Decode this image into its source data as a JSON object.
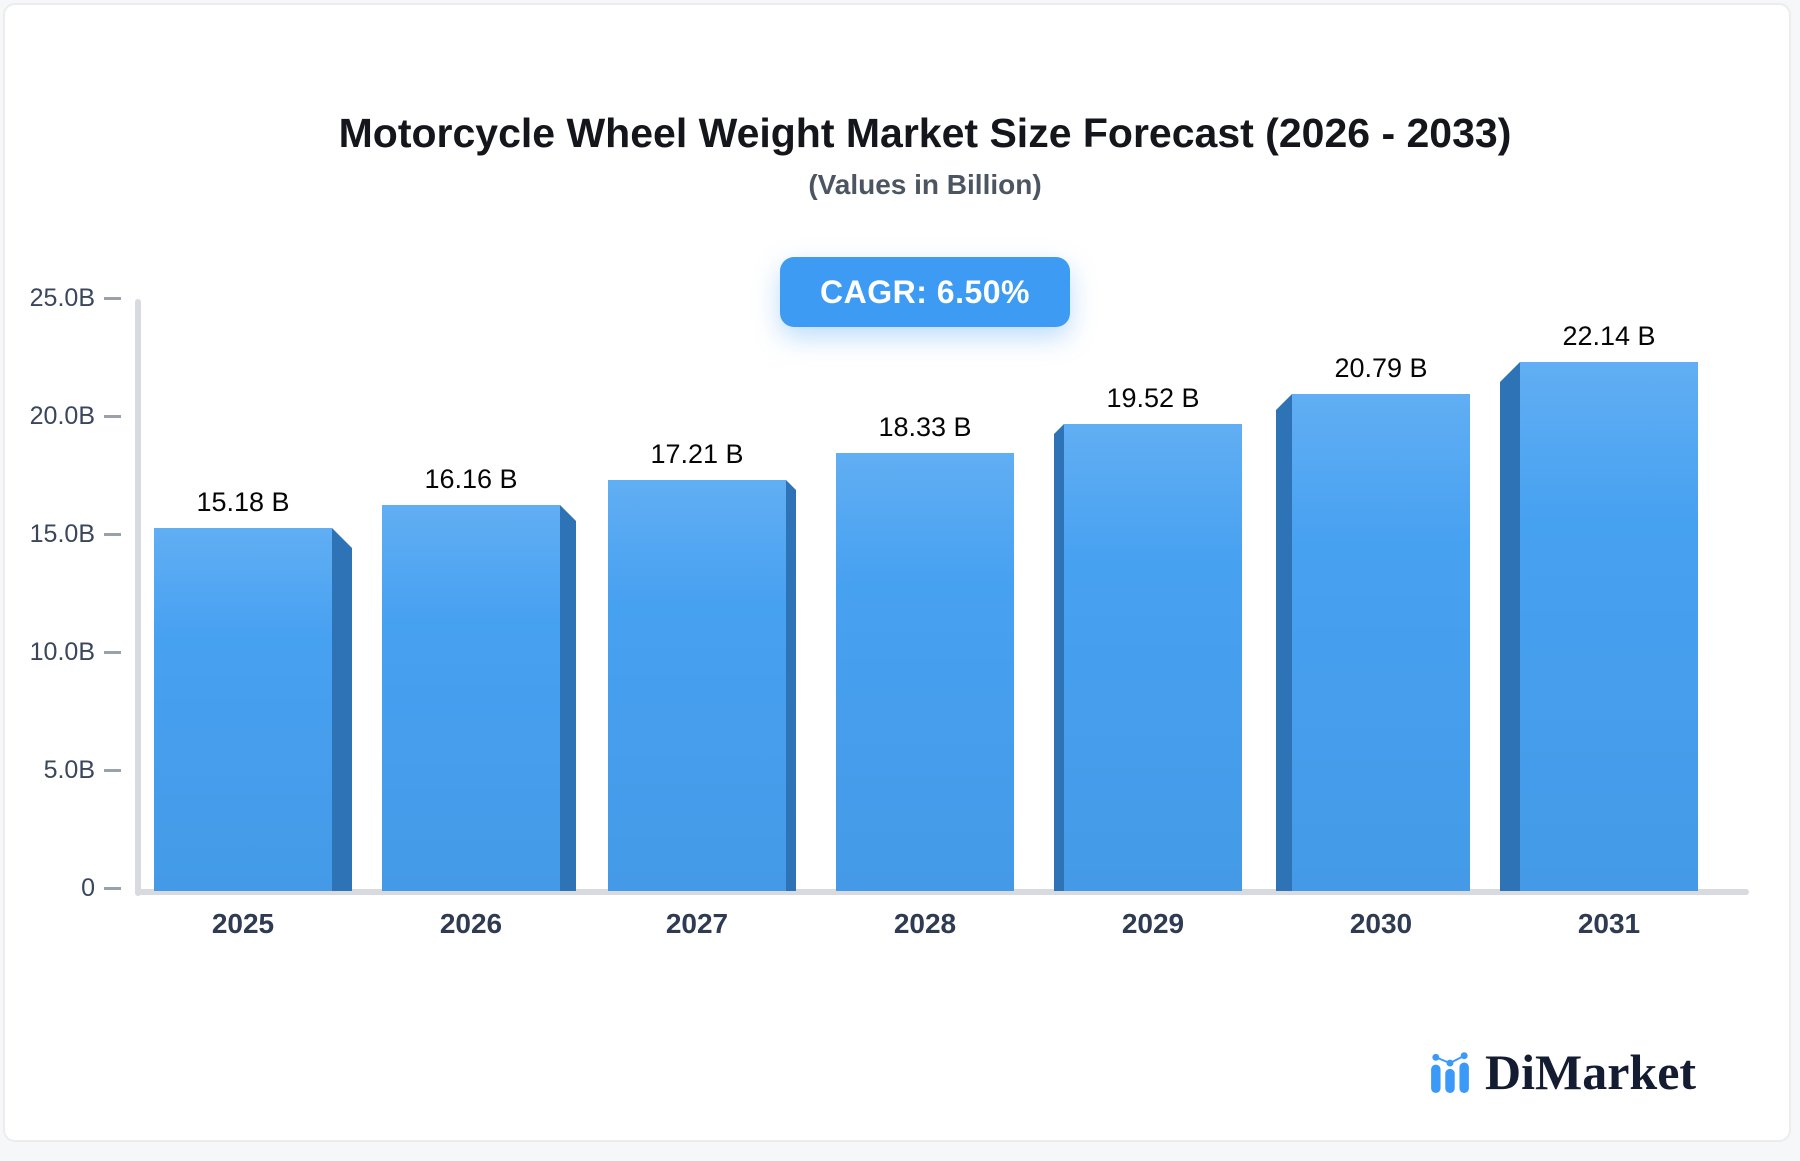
{
  "header": {
    "title": "Motorcycle Wheel Weight Market Size Forecast (2026 - 2033)",
    "subtitle": "(Values in Billion)",
    "cagr_badge": "CAGR: 6.50%"
  },
  "chart_data": {
    "type": "bar",
    "title": "Motorcycle Wheel Weight Market Size Forecast (2026 - 2033)",
    "subtitle": "(Values in Billion)",
    "categories": [
      "2025",
      "2026",
      "2027",
      "2028",
      "2029",
      "2030",
      "2031"
    ],
    "values": [
      15.18,
      16.16,
      17.21,
      18.33,
      19.52,
      20.79,
      22.14
    ],
    "value_labels": [
      "15.18 B",
      "16.16 B",
      "17.21 B",
      "18.33 B",
      "19.52 B",
      "20.79 B",
      "22.14 B"
    ],
    "xlabel": "",
    "ylabel": "",
    "ytick_labels": [
      "0",
      "5.0B",
      "10.0B",
      "15.0B",
      "20.0B",
      "25.0B"
    ],
    "ylim": [
      0,
      25
    ],
    "grid": "off",
    "legend": "none",
    "annotations": [
      "CAGR: 6.50%"
    ],
    "bar_color": "#47a1f1",
    "bar_side_color": "#2e73b5",
    "badge_color": "#3e9bf3",
    "axis_line_color": "#d7dade",
    "style": "pseudo-3d bars, side faces angled toward center"
  },
  "footer": {
    "brand": "DiMarket",
    "logo_icon": "mini-bar-chart-with-trend-line-icon",
    "logo_color": "#3b9af8"
  }
}
